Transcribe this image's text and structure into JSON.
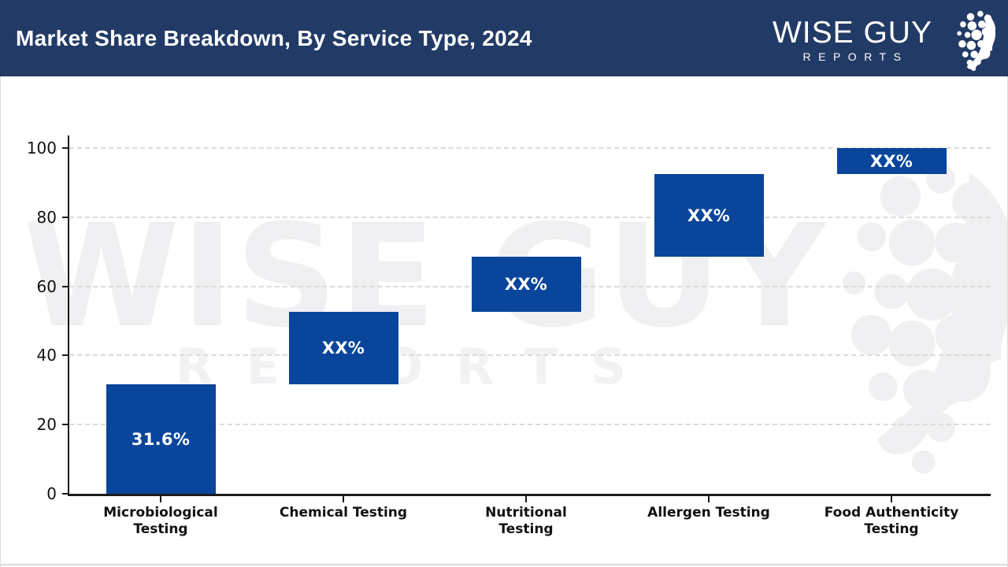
{
  "header": {
    "title": "Market Share Breakdown, By Service Type, 2024",
    "logo": {
      "line1": "WISE GUY",
      "line2": "REPORTS"
    }
  },
  "watermark": {
    "line1": "WISE GUY",
    "line2": "REPORTS"
  },
  "chart_data": {
    "type": "bar",
    "subtype": "waterfall",
    "title": "Market Share Breakdown, By Service Type, 2024",
    "categories": [
      "Microbiological\nTesting",
      "Chemical Testing",
      "Nutritional\nTesting",
      "Allergen Testing",
      "Food Authenticity\nTesting"
    ],
    "segments": [
      {
        "category": "Microbiological Testing",
        "start": 0,
        "end": 31.6,
        "label": "31.6%"
      },
      {
        "category": "Chemical Testing",
        "start": 31.6,
        "end": 52.7,
        "label": "XX%"
      },
      {
        "category": "Nutritional Testing",
        "start": 52.7,
        "end": 68.5,
        "label": "XX%"
      },
      {
        "category": "Allergen Testing",
        "start": 68.5,
        "end": 92.4,
        "label": "XX%"
      },
      {
        "category": "Food Authenticity Testing",
        "start": 92.4,
        "end": 100,
        "label": "XX%"
      }
    ],
    "xlabel": "",
    "ylabel": "",
    "ylim": [
      0,
      100
    ],
    "yticks": [
      0,
      20,
      40,
      60,
      80,
      100
    ],
    "grid": "horizontal-dashed",
    "legend": "none",
    "colors": {
      "bar": "#09459B",
      "bar_label": "#FFFFFF",
      "header_bg": "#223A66",
      "grid": "#DBDBDB",
      "axis": "#1A1A1A",
      "watermark": "#F0F0F3"
    }
  }
}
